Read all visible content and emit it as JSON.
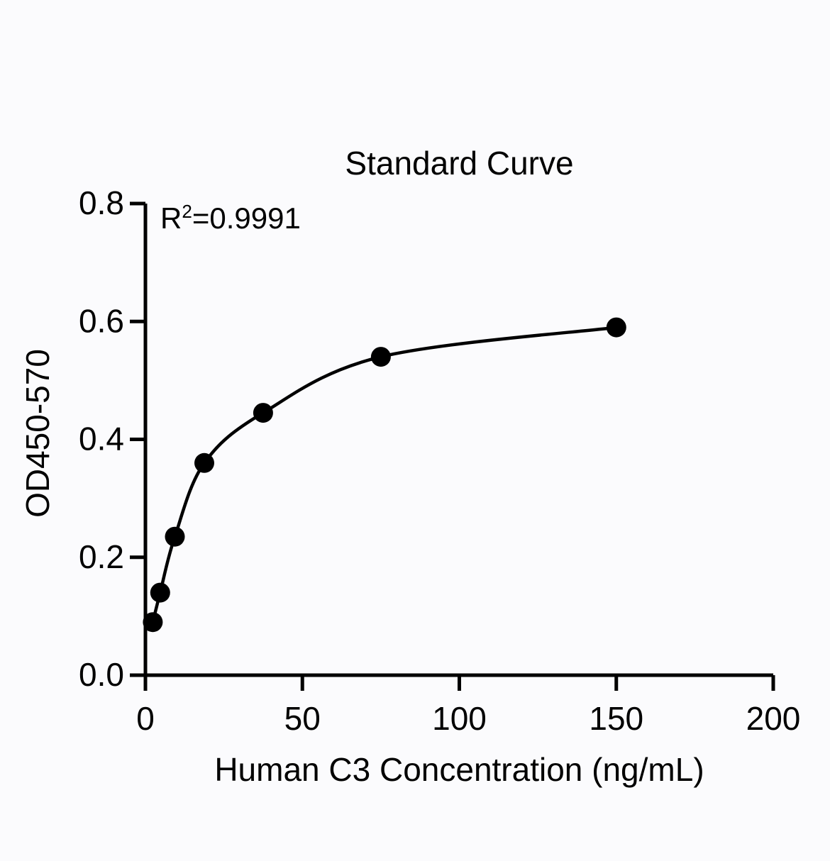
{
  "page_background": "#fbfbfd",
  "chart_data": {
    "type": "scatter",
    "title": "Standard Curve",
    "annotation": {
      "prefix": "R",
      "sup": "2",
      "rest": "=0.9991"
    },
    "xlabel": "Human C3 Concentration (ng/mL)",
    "ylabel": "OD450-570",
    "xlim": [
      0,
      200
    ],
    "ylim": [
      0,
      0.8
    ],
    "x_ticks": [
      0,
      50,
      100,
      150,
      200
    ],
    "x_tick_labels": [
      "0",
      "50",
      "100",
      "150",
      "200"
    ],
    "y_ticks": [
      0,
      0.2,
      0.4,
      0.6,
      0.8
    ],
    "y_tick_labels": [
      "0.0",
      "0.2",
      "0.4",
      "0.6",
      "0.8"
    ],
    "grid": false,
    "legend": "none",
    "axis_color": "#000000",
    "series": [
      {
        "name": "standards",
        "marker": "filled-circle",
        "color": "#000000",
        "curve": "smooth saturation fit through points",
        "x": [
          2.34,
          4.69,
          9.38,
          18.75,
          37.5,
          75,
          150
        ],
        "y": [
          0.09,
          0.14,
          0.235,
          0.36,
          0.445,
          0.54,
          0.59
        ]
      }
    ]
  }
}
